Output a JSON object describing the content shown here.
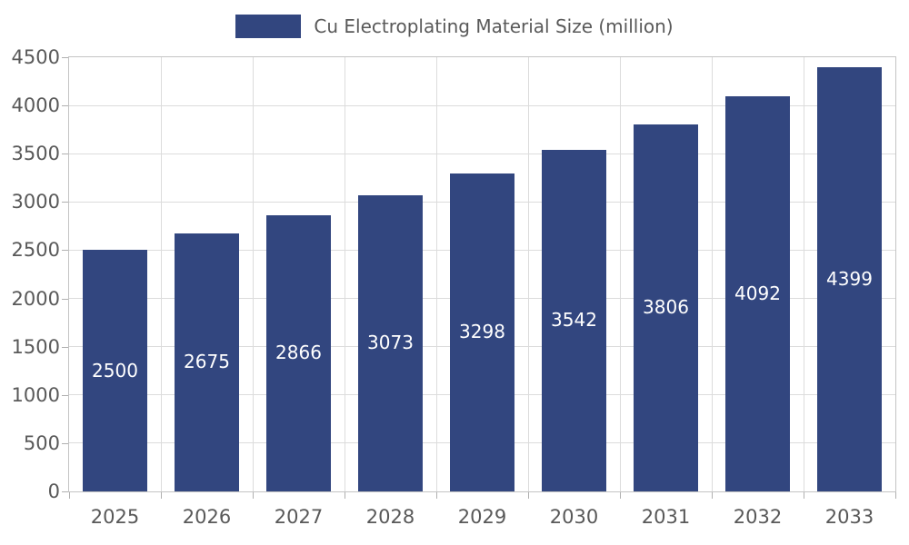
{
  "legend": {
    "label": "Cu Electroplating Material Size (million)"
  },
  "chart_data": {
    "type": "bar",
    "title": "Cu Electroplating Material Size (million)",
    "categories": [
      "2025",
      "2026",
      "2027",
      "2028",
      "2029",
      "2030",
      "2031",
      "2032",
      "2033"
    ],
    "values": [
      2500,
      2675,
      2866,
      3073,
      3298,
      3542,
      3806,
      4092,
      4399
    ],
    "series": [
      {
        "name": "Cu Electroplating Material Size (million)",
        "values": [
          2500,
          2675,
          2866,
          3073,
          3298,
          3542,
          3806,
          4092,
          4399
        ]
      }
    ],
    "xlabel": "",
    "ylabel": "",
    "ylim": [
      0,
      4500
    ],
    "yticks": [
      0,
      500,
      1000,
      1500,
      2000,
      2500,
      3000,
      3500,
      4000,
      4500
    ],
    "grid": true,
    "legend_position": "top",
    "bar_width_fraction": 0.7,
    "value_label_position": "center-of-bar",
    "colors": {
      "bar": "#32467f",
      "bar_label": "#ffffff",
      "axis_text": "#595959",
      "gridline": "#dcdcdc",
      "axis_line": "#c4c4c4",
      "background": "#ffffff"
    }
  }
}
